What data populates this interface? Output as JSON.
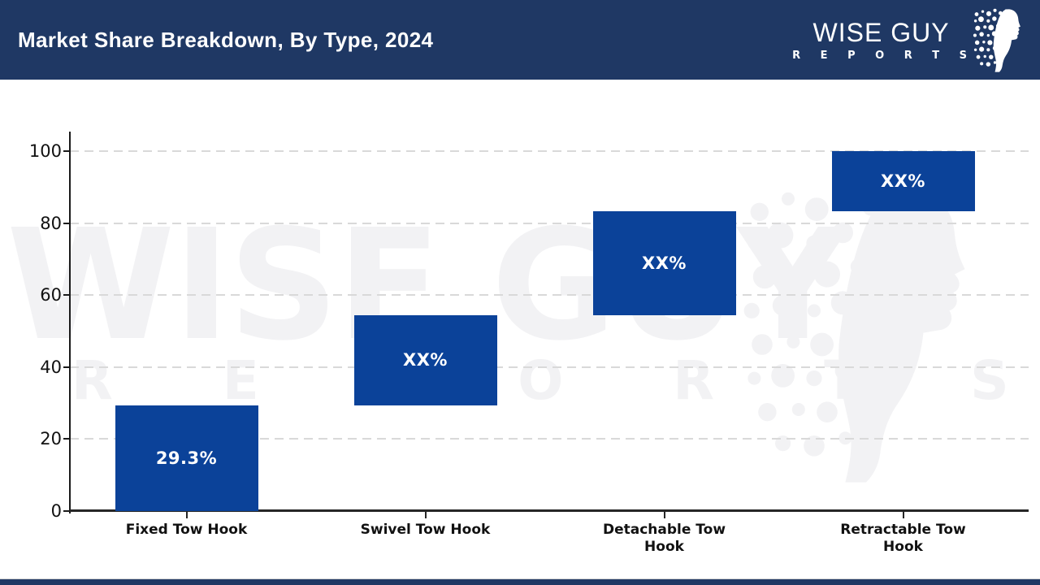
{
  "header": {
    "title": "Market Share Breakdown, By Type, 2024",
    "logo": {
      "line1": "WISE GUY",
      "line2": "R E P O R T S"
    }
  },
  "watermark": {
    "line1": "WISE GUY",
    "line2": "R E P O R T S"
  },
  "colors": {
    "header_bg": "#1f3864",
    "bar": "#0b4299",
    "bar_label": "#ffffff",
    "grid": "#d9d9d9",
    "axis": "#262626",
    "tick_text": "#111111",
    "watermark": "#f2f2f4"
  },
  "chart_data": {
    "type": "bar",
    "subtype": "waterfall",
    "title": "Market Share Breakdown, By Type, 2024",
    "categories": [
      "Fixed Tow Hook",
      "Swivel Tow Hook",
      "Detachable Tow Hook",
      "Retractable Tow Hook"
    ],
    "series": [
      {
        "name": "Market Share (%)",
        "segments": [
          {
            "start": 0,
            "end": 29.3,
            "label": "29.3%"
          },
          {
            "start": 29.3,
            "end": 54.5,
            "label": "XX%"
          },
          {
            "start": 54.5,
            "end": 83.3,
            "label": "XX%"
          },
          {
            "start": 83.3,
            "end": 100,
            "label": "XX%"
          }
        ]
      }
    ],
    "xlabel": "",
    "ylabel": "",
    "ylim": [
      0,
      100
    ],
    "yticks": [
      0,
      20,
      40,
      60,
      80,
      100
    ],
    "grid": "horizontal-dashed",
    "legend": "none"
  }
}
